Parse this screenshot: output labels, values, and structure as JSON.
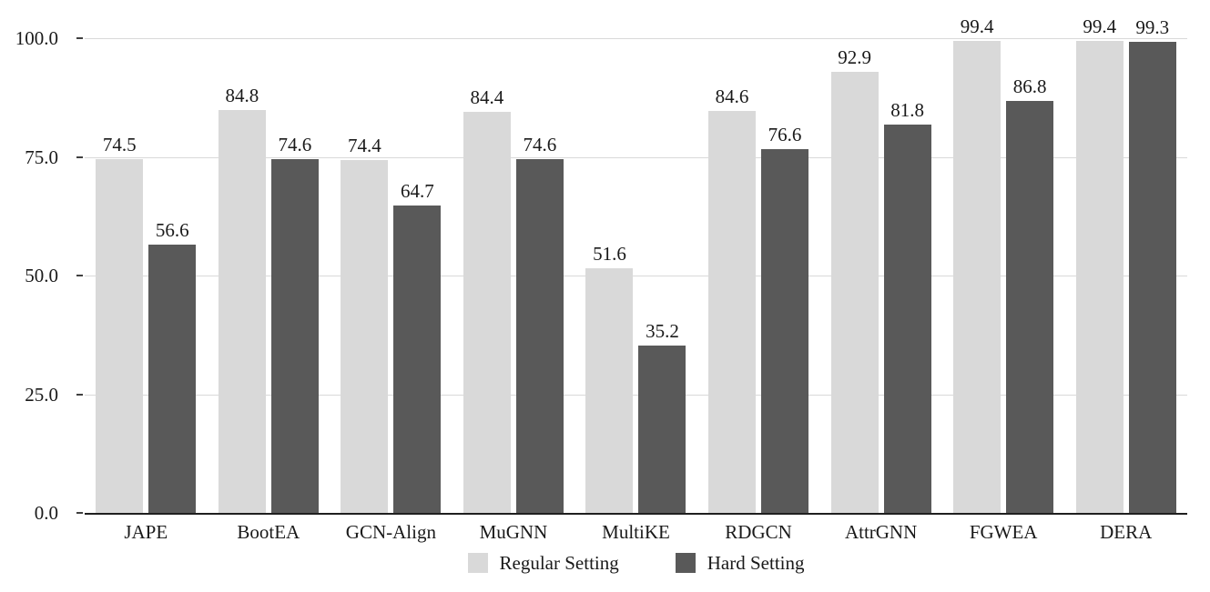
{
  "chart_data": {
    "type": "bar",
    "title": "",
    "xlabel": "",
    "ylabel": "",
    "categories": [
      "JAPE",
      "BootEA",
      "GCN-Align",
      "MuGNN",
      "MultiKE",
      "RDGCN",
      "AttrGNN",
      "FGWEA",
      "DERA"
    ],
    "series": [
      {
        "name": "Regular Setting",
        "color": "#d9d9d9",
        "values": [
          74.5,
          84.8,
          74.4,
          84.4,
          51.6,
          84.6,
          92.9,
          99.4,
          99.4
        ]
      },
      {
        "name": "Hard Setting",
        "color": "#595959",
        "values": [
          56.6,
          74.6,
          64.7,
          74.6,
          35.2,
          76.6,
          81.8,
          86.8,
          99.3
        ]
      }
    ],
    "value_labels": true,
    "value_label_decimals": 1,
    "y_ticks": [
      0,
      25,
      50,
      75,
      100
    ],
    "y_tick_labels": [
      "0.0",
      "25.0",
      "50.0",
      "75.0",
      "100.0"
    ],
    "ylim": [
      0,
      100
    ],
    "grid": true,
    "legend_position": "bottom",
    "colors": {
      "background": "#ffffff",
      "gridline": "#d9d9d9",
      "axis_line": "#1f1f1f",
      "tick_mark": "#404040",
      "text": "#1a1a1a"
    }
  }
}
